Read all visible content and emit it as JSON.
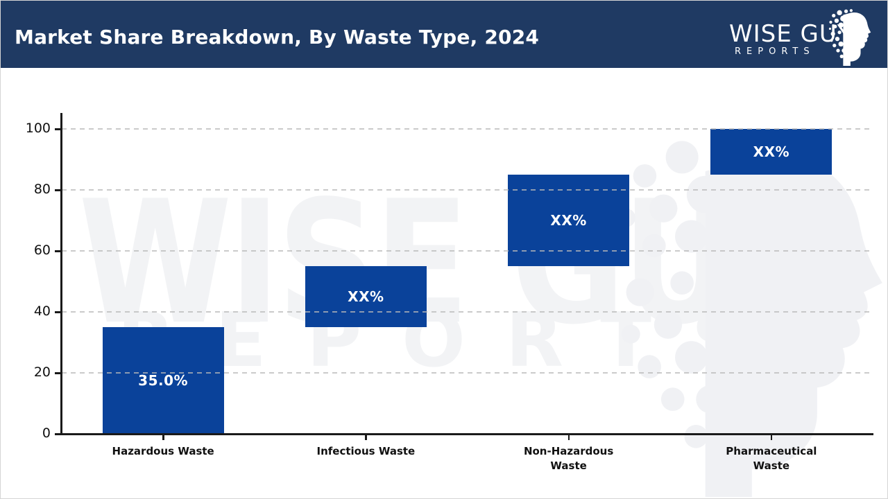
{
  "header": {
    "title": "Market Share Breakdown, By Waste Type, 2024",
    "logo": {
      "line1": "WISE GUY",
      "line2": "REPORTS"
    }
  },
  "watermark": {
    "line1": "WISE GUY",
    "line2": "REPORTS"
  },
  "chart_data": {
    "type": "bar",
    "subtype": "waterfall",
    "title": "Market Share Breakdown, By Waste Type, 2024",
    "categories": [
      "Hazardous Waste",
      "Infectious Waste",
      "Non-Hazardous Waste",
      "Pharmaceutical Waste"
    ],
    "bars": [
      {
        "category": "Hazardous Waste",
        "start": 0,
        "end": 35,
        "label": "35.0%"
      },
      {
        "category": "Infectious Waste",
        "start": 35,
        "end": 55,
        "label": "XX%"
      },
      {
        "category": "Non-Hazardous Waste",
        "start": 55,
        "end": 85,
        "label": "XX%"
      },
      {
        "category": "Pharmaceutical Waste",
        "start": 85,
        "end": 100,
        "label": "XX%"
      }
    ],
    "yticks": [
      0,
      20,
      40,
      60,
      80,
      100
    ],
    "ylim": [
      0,
      105
    ],
    "grid": "dashed-horizontal",
    "legend": "none",
    "bar_color": "#0a429a",
    "bar_label_color": "#ffffff"
  },
  "colors": {
    "header_bg": "#1f3a63",
    "background": "#ffffff",
    "axis": "#1a1a1a",
    "grid": "#b9b9b9",
    "watermark": "#f2f3f5"
  }
}
